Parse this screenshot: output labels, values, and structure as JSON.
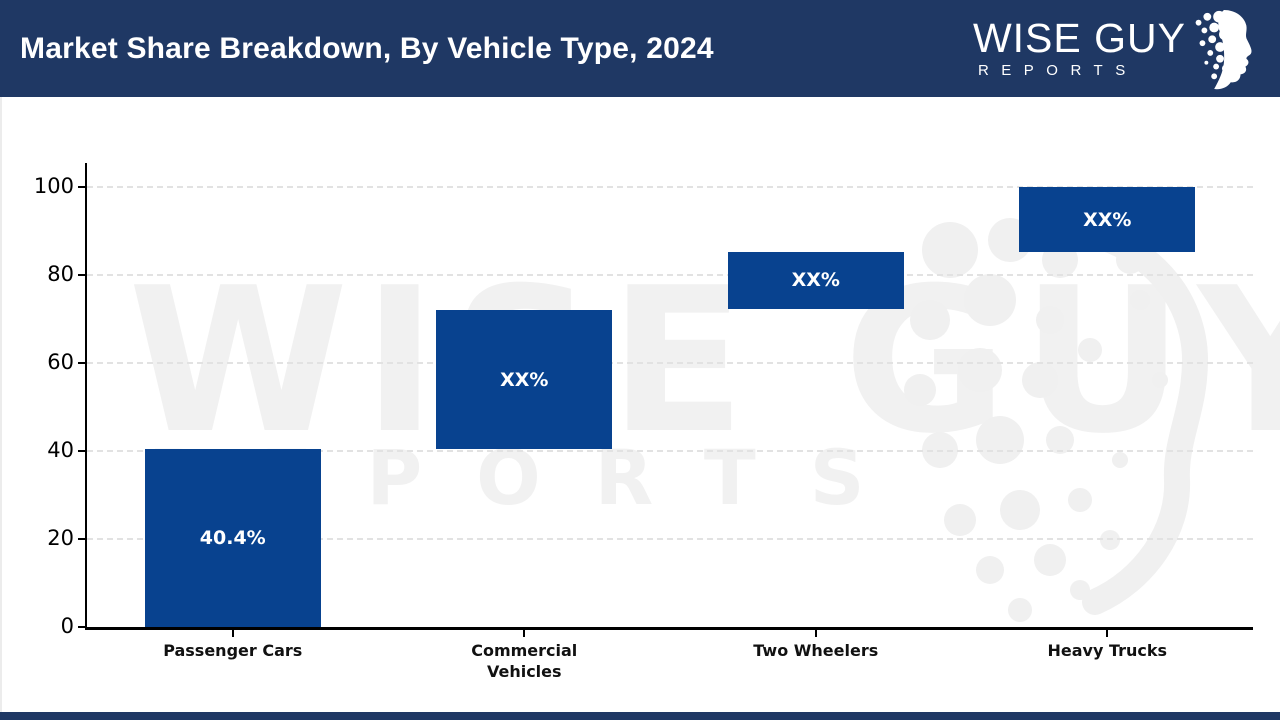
{
  "header": {
    "title": "Market Share Breakdown, By Vehicle Type, 2024",
    "logo": {
      "name_line": "WISE GUY",
      "sub_line": "REPORTS",
      "face_icon": "dotted-face-profile"
    }
  },
  "watermark": {
    "line1": "WISE GUY",
    "line2": "REPORTS"
  },
  "chart_data": {
    "type": "bar",
    "subtype": "floating-waterfall",
    "title": "Market Share Breakdown, By Vehicle Type, 2024",
    "categories": [
      "Passenger Cars",
      "Commercial\nVehicles",
      "Two Wheelers",
      "Heavy Trucks"
    ],
    "bars": [
      {
        "category": "Passenger Cars",
        "start": 0,
        "end": 40.4,
        "label": "40.4%"
      },
      {
        "category": "Commercial Vehicles",
        "start": 40.4,
        "end": 72.0,
        "label": "XX%"
      },
      {
        "category": "Two Wheelers",
        "start": 72.3,
        "end": 85.2,
        "label": "XX%"
      },
      {
        "category": "Heavy Trucks",
        "start": 85.2,
        "end": 100.0,
        "label": "XX%"
      }
    ],
    "xlabel": "",
    "ylabel": "",
    "yticks": [
      0,
      20,
      40,
      60,
      80,
      100
    ],
    "ylim": [
      0,
      105.5
    ],
    "grid": "horizontal-dashed",
    "legend": "none",
    "bar_color": "#08428f",
    "bar_label_color": "#ffffff",
    "axis_color": "#000000",
    "gridline_color": "#e2e2e2",
    "header_color": "#1f3864",
    "watermark_color": "#f1f1f1",
    "background": "#ffffff"
  }
}
